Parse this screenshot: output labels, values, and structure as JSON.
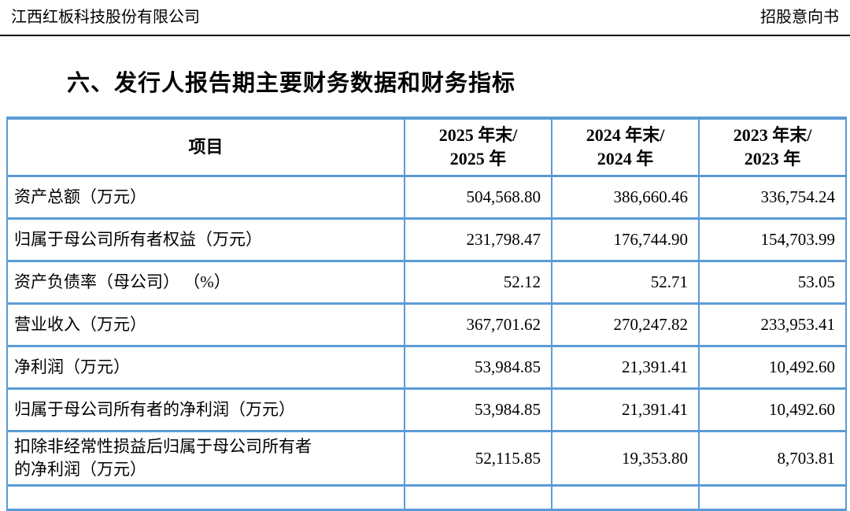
{
  "page_header": {
    "company": "江西红板科技股份有限公司",
    "doc_type": "招股意向书"
  },
  "section_title": "六、发行人报告期主要财务数据和财务指标",
  "colors": {
    "table_border": "#5B9BD5",
    "text": "#000000"
  },
  "table": {
    "header": {
      "item": "项目",
      "periods": [
        "2025 年末/\n2025 年",
        "2024 年末/\n2024 年",
        "2023 年末/\n2023 年"
      ]
    },
    "rows": [
      {
        "label": "资产总额（万元）",
        "values": [
          "504,568.80",
          "386,660.46",
          "336,754.24"
        ]
      },
      {
        "label": "归属于母公司所有者权益（万元）",
        "values": [
          "231,798.47",
          "176,744.90",
          "154,703.99"
        ]
      },
      {
        "label": "资产负债率（母公司） （%）",
        "values": [
          "52.12",
          "52.71",
          "53.05"
        ]
      },
      {
        "label": "营业收入（万元）",
        "values": [
          "367,701.62",
          "270,247.82",
          "233,953.41"
        ]
      },
      {
        "label": "净利润（万元）",
        "values": [
          "53,984.85",
          "21,391.41",
          "10,492.60"
        ]
      },
      {
        "label": "归属于母公司所有者的净利润（万元）",
        "values": [
          "53,984.85",
          "21,391.41",
          "10,492.60"
        ]
      },
      {
        "label": "扣除非经常性损益后归属于母公司所有者\n的净利润（万元）",
        "values": [
          "52,115.85",
          "19,353.80",
          "8,703.81"
        ]
      }
    ]
  }
}
